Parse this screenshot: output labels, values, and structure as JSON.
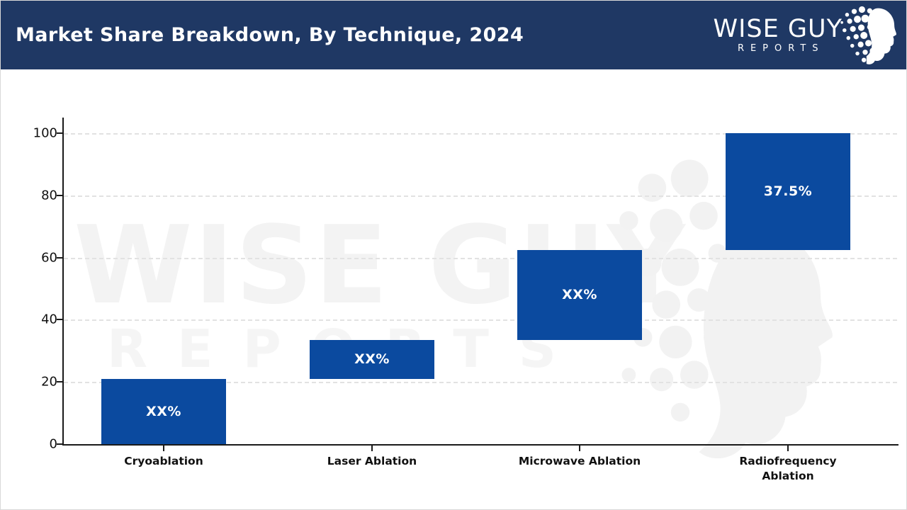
{
  "header": {
    "title": "Market Share Breakdown, By Technique, 2024",
    "background_color": "#1f3864",
    "logo": {
      "line1": "WISE GUY",
      "line2": "REPORTS"
    }
  },
  "watermark": {
    "line1": "WISE GUY",
    "line2": "REPORTS"
  },
  "chart_data": {
    "type": "waterfall",
    "title": "Market Share Breakdown, By Technique, 2024",
    "categories": [
      "Cryoablation",
      "Laser Ablation",
      "Microwave Ablation",
      "Radiofrequency Ablation"
    ],
    "segments": [
      {
        "category": "Cryoablation",
        "start": 0,
        "end": 21,
        "label": "XX%"
      },
      {
        "category": "Laser Ablation",
        "start": 21,
        "end": 33.5,
        "label": "XX%"
      },
      {
        "category": "Microwave Ablation",
        "start": 33.5,
        "end": 62.5,
        "label": "XX%"
      },
      {
        "category": "Radiofrequency Ablation",
        "start": 62.5,
        "end": 100,
        "label": "37.5%"
      }
    ],
    "y_ticks": [
      0,
      20,
      40,
      60,
      80,
      100
    ],
    "ylim": [
      0,
      105
    ],
    "grid": "horizontal-dashed",
    "bar_color": "#0b4a9f",
    "bar_label_color": "#ffffff",
    "legend": null
  }
}
